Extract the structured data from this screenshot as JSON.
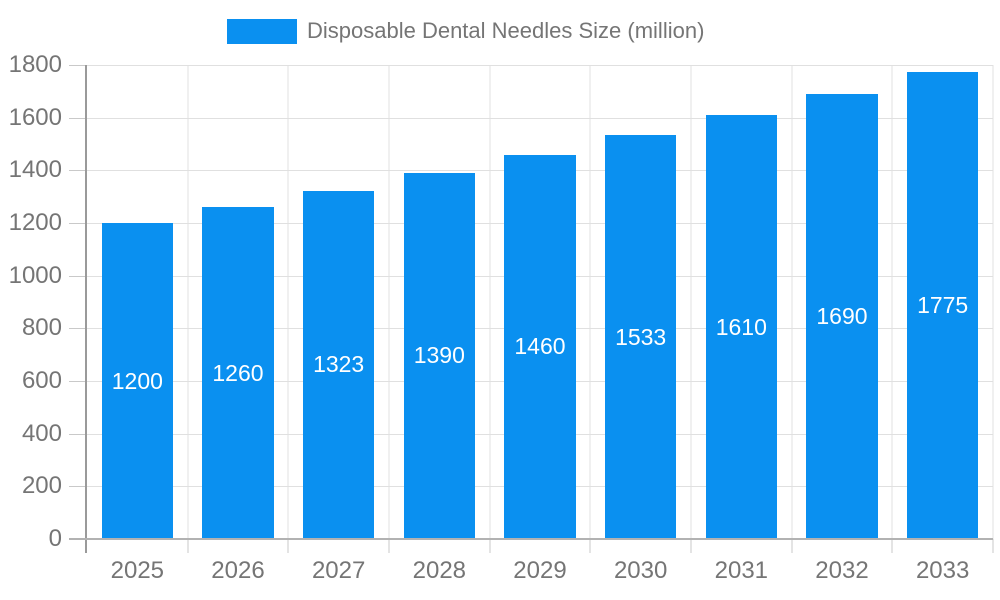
{
  "chart_data": {
    "type": "bar",
    "title": "Disposable Dental Needles Size (million)",
    "categories": [
      "2025",
      "2026",
      "2027",
      "2028",
      "2029",
      "2030",
      "2031",
      "2032",
      "2033"
    ],
    "values": [
      1200,
      1260,
      1323,
      1390,
      1460,
      1533,
      1610,
      1690,
      1775
    ],
    "xlabel": "",
    "ylabel": "",
    "ylim": [
      0,
      1800
    ],
    "y_ticks": [
      0,
      200,
      400,
      600,
      800,
      1000,
      1200,
      1400,
      1600,
      1800
    ],
    "grid": true,
    "legend_position": "top-center",
    "value_labels": "inside-center",
    "colors": {
      "bar": "#0a90f0",
      "axis_text": "#757575",
      "value_label": "#ffffff",
      "grid": "#e0e0e0",
      "axis_line": "#9a9a9a",
      "tick": "#c9c9c9",
      "background": "#ffffff"
    }
  }
}
